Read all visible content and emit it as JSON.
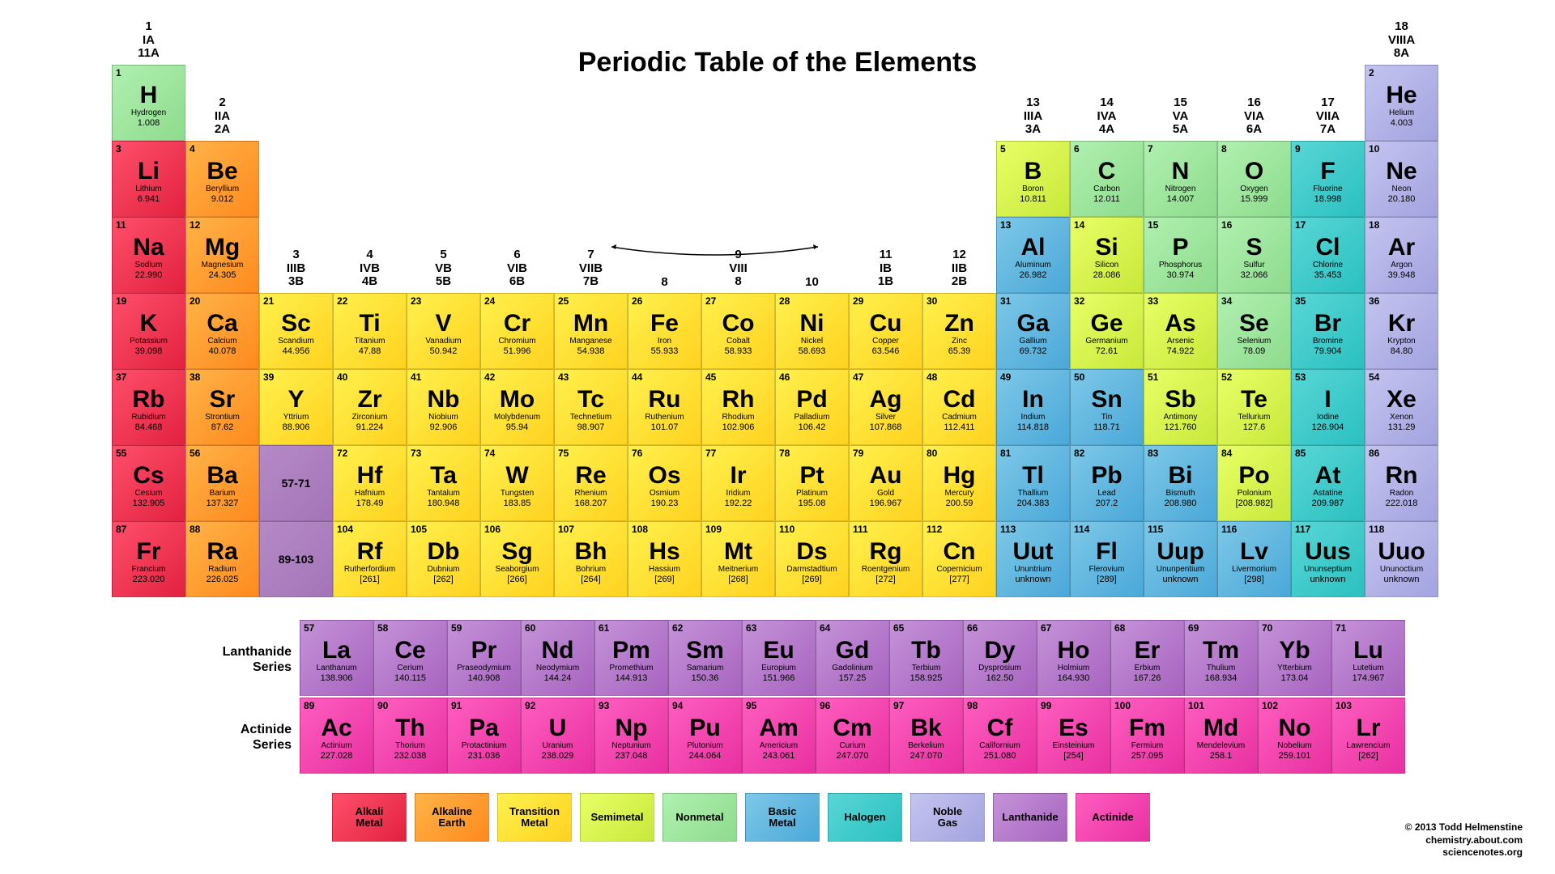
{
  "title": "Periodic Table of the Elements",
  "credits": [
    "© 2013 Todd Helmenstine",
    "chemistry.about.com",
    "sciencenotes.org"
  ],
  "cell_text_color": "#000000",
  "categories": {
    "alkali": {
      "label": "Alkali\nMetal",
      "g": [
        "#ff4f6b",
        "#e2223f"
      ]
    },
    "alkaline": {
      "label": "Alkaline\nEarth",
      "g": [
        "#ffb347",
        "#ff8a1f"
      ]
    },
    "transition": {
      "label": "Transition\nMetal",
      "g": [
        "#fff14d",
        "#ffd21f"
      ]
    },
    "semimetal": {
      "label": "Semimetal",
      "g": [
        "#e8ff66",
        "#c8e83b"
      ]
    },
    "nonmetal": {
      "label": "Nonmetal",
      "g": [
        "#b0f0b0",
        "#8edb8e"
      ]
    },
    "basic": {
      "label": "Basic\nMetal",
      "g": [
        "#7ec8e8",
        "#4aa8d8"
      ]
    },
    "halogen": {
      "label": "Halogen",
      "g": [
        "#59d6d6",
        "#2bc0c0"
      ]
    },
    "noble": {
      "label": "Noble\nGas",
      "g": [
        "#c4c4f0",
        "#a3a3e0"
      ]
    },
    "lanth": {
      "label": "Lanthanide",
      "g": [
        "#c593d8",
        "#a763c0"
      ]
    },
    "act": {
      "label": "Actinide",
      "g": [
        "#ff5ec0",
        "#e830a0"
      ]
    }
  },
  "legend_order": [
    "alkali",
    "alkaline",
    "transition",
    "semimetal",
    "nonmetal",
    "basic",
    "halogen",
    "noble",
    "lanth",
    "act"
  ],
  "group_headers": [
    {
      "col": 1,
      "lines": [
        "1",
        "IA",
        "11A"
      ]
    },
    {
      "col": 2,
      "lines": [
        "2",
        "IIA",
        "2A"
      ]
    },
    {
      "col": 3,
      "lines": [
        "3",
        "IIIB",
        "3B"
      ]
    },
    {
      "col": 4,
      "lines": [
        "4",
        "IVB",
        "4B"
      ]
    },
    {
      "col": 5,
      "lines": [
        "5",
        "VB",
        "5B"
      ]
    },
    {
      "col": 6,
      "lines": [
        "6",
        "VIB",
        "6B"
      ]
    },
    {
      "col": 7,
      "lines": [
        "7",
        "VIIB",
        "7B"
      ]
    },
    {
      "col": 8,
      "lines": [
        "8"
      ]
    },
    {
      "col": 9,
      "lines": [
        "9",
        "VIII",
        "8"
      ]
    },
    {
      "col": 10,
      "lines": [
        "10"
      ]
    },
    {
      "col": 11,
      "lines": [
        "11",
        "IB",
        "1B"
      ]
    },
    {
      "col": 12,
      "lines": [
        "12",
        "IIB",
        "2B"
      ]
    },
    {
      "col": 13,
      "lines": [
        "13",
        "IIIA",
        "3A"
      ]
    },
    {
      "col": 14,
      "lines": [
        "14",
        "IVA",
        "4A"
      ]
    },
    {
      "col": 15,
      "lines": [
        "15",
        "VA",
        "5A"
      ]
    },
    {
      "col": 16,
      "lines": [
        "16",
        "VIA",
        "6A"
      ]
    },
    {
      "col": 17,
      "lines": [
        "17",
        "VIIA",
        "7A"
      ]
    },
    {
      "col": 18,
      "lines": [
        "18",
        "VIIIA",
        "8A"
      ]
    }
  ],
  "header_row": {
    "1": 1,
    "2": 2,
    "3": 4,
    "4": 4,
    "5": 4,
    "6": 4,
    "7": 4,
    "8": 4,
    "9": 4,
    "10": 4,
    "11": 4,
    "12": 4,
    "13": 2,
    "14": 2,
    "15": 2,
    "16": 2,
    "17": 2,
    "18": 1
  },
  "placeholders": [
    {
      "row": 6,
      "col": 3,
      "label": "57-71"
    },
    {
      "row": 7,
      "col": 3,
      "label": "89-103"
    }
  ],
  "series_labels": {
    "lan": "Lanthanide\nSeries",
    "act": "Actinide\nSeries"
  },
  "elements": [
    {
      "n": 1,
      "s": "H",
      "name": "Hydrogen",
      "m": "1.008",
      "c": "nonmetal",
      "r": 1,
      "g": 1
    },
    {
      "n": 2,
      "s": "He",
      "name": "Helium",
      "m": "4.003",
      "c": "noble",
      "r": 1,
      "g": 18
    },
    {
      "n": 3,
      "s": "Li",
      "name": "Lithium",
      "m": "6.941",
      "c": "alkali",
      "r": 2,
      "g": 1
    },
    {
      "n": 4,
      "s": "Be",
      "name": "Beryllium",
      "m": "9.012",
      "c": "alkaline",
      "r": 2,
      "g": 2
    },
    {
      "n": 5,
      "s": "B",
      "name": "Boron",
      "m": "10.811",
      "c": "semimetal",
      "r": 2,
      "g": 13
    },
    {
      "n": 6,
      "s": "C",
      "name": "Carbon",
      "m": "12.011",
      "c": "nonmetal",
      "r": 2,
      "g": 14
    },
    {
      "n": 7,
      "s": "N",
      "name": "Nitrogen",
      "m": "14.007",
      "c": "nonmetal",
      "r": 2,
      "g": 15
    },
    {
      "n": 8,
      "s": "O",
      "name": "Oxygen",
      "m": "15.999",
      "c": "nonmetal",
      "r": 2,
      "g": 16
    },
    {
      "n": 9,
      "s": "F",
      "name": "Fluorine",
      "m": "18.998",
      "c": "halogen",
      "r": 2,
      "g": 17
    },
    {
      "n": 10,
      "s": "Ne",
      "name": "Neon",
      "m": "20.180",
      "c": "noble",
      "r": 2,
      "g": 18
    },
    {
      "n": 11,
      "s": "Na",
      "name": "Sodium",
      "m": "22.990",
      "c": "alkali",
      "r": 3,
      "g": 1
    },
    {
      "n": 12,
      "s": "Mg",
      "name": "Magnesium",
      "m": "24.305",
      "c": "alkaline",
      "r": 3,
      "g": 2
    },
    {
      "n": 13,
      "s": "Al",
      "name": "Aluminum",
      "m": "26.982",
      "c": "basic",
      "r": 3,
      "g": 13
    },
    {
      "n": 14,
      "s": "Si",
      "name": "Silicon",
      "m": "28.086",
      "c": "semimetal",
      "r": 3,
      "g": 14
    },
    {
      "n": 15,
      "s": "P",
      "name": "Phosphorus",
      "m": "30.974",
      "c": "nonmetal",
      "r": 3,
      "g": 15
    },
    {
      "n": 16,
      "s": "S",
      "name": "Sulfur",
      "m": "32.066",
      "c": "nonmetal",
      "r": 3,
      "g": 16
    },
    {
      "n": 17,
      "s": "Cl",
      "name": "Chlorine",
      "m": "35.453",
      "c": "halogen",
      "r": 3,
      "g": 17
    },
    {
      "n": 18,
      "s": "Ar",
      "name": "Argon",
      "m": "39.948",
      "c": "noble",
      "r": 3,
      "g": 18
    },
    {
      "n": 19,
      "s": "K",
      "name": "Potassium",
      "m": "39.098",
      "c": "alkali",
      "r": 4,
      "g": 1
    },
    {
      "n": 20,
      "s": "Ca",
      "name": "Calcium",
      "m": "40.078",
      "c": "alkaline",
      "r": 4,
      "g": 2
    },
    {
      "n": 21,
      "s": "Sc",
      "name": "Scandium",
      "m": "44.956",
      "c": "transition",
      "r": 4,
      "g": 3
    },
    {
      "n": 22,
      "s": "Ti",
      "name": "Titanium",
      "m": "47.88",
      "c": "transition",
      "r": 4,
      "g": 4
    },
    {
      "n": 23,
      "s": "V",
      "name": "Vanadium",
      "m": "50.942",
      "c": "transition",
      "r": 4,
      "g": 5
    },
    {
      "n": 24,
      "s": "Cr",
      "name": "Chromium",
      "m": "51.996",
      "c": "transition",
      "r": 4,
      "g": 6
    },
    {
      "n": 25,
      "s": "Mn",
      "name": "Manganese",
      "m": "54.938",
      "c": "transition",
      "r": 4,
      "g": 7
    },
    {
      "n": 26,
      "s": "Fe",
      "name": "Iron",
      "m": "55.933",
      "c": "transition",
      "r": 4,
      "g": 8
    },
    {
      "n": 27,
      "s": "Co",
      "name": "Cobalt",
      "m": "58.933",
      "c": "transition",
      "r": 4,
      "g": 9
    },
    {
      "n": 28,
      "s": "Ni",
      "name": "Nickel",
      "m": "58.693",
      "c": "transition",
      "r": 4,
      "g": 10
    },
    {
      "n": 29,
      "s": "Cu",
      "name": "Copper",
      "m": "63.546",
      "c": "transition",
      "r": 4,
      "g": 11
    },
    {
      "n": 30,
      "s": "Zn",
      "name": "Zinc",
      "m": "65.39",
      "c": "transition",
      "r": 4,
      "g": 12
    },
    {
      "n": 31,
      "s": "Ga",
      "name": "Gallium",
      "m": "69.732",
      "c": "basic",
      "r": 4,
      "g": 13
    },
    {
      "n": 32,
      "s": "Ge",
      "name": "Germanium",
      "m": "72.61",
      "c": "semimetal",
      "r": 4,
      "g": 14
    },
    {
      "n": 33,
      "s": "As",
      "name": "Arsenic",
      "m": "74.922",
      "c": "semimetal",
      "r": 4,
      "g": 15
    },
    {
      "n": 34,
      "s": "Se",
      "name": "Selenium",
      "m": "78.09",
      "c": "nonmetal",
      "r": 4,
      "g": 16
    },
    {
      "n": 35,
      "s": "Br",
      "name": "Bromine",
      "m": "79.904",
      "c": "halogen",
      "r": 4,
      "g": 17
    },
    {
      "n": 36,
      "s": "Kr",
      "name": "Krypton",
      "m": "84.80",
      "c": "noble",
      "r": 4,
      "g": 18
    },
    {
      "n": 37,
      "s": "Rb",
      "name": "Rubidium",
      "m": "84.468",
      "c": "alkali",
      "r": 5,
      "g": 1
    },
    {
      "n": 38,
      "s": "Sr",
      "name": "Strontium",
      "m": "87.62",
      "c": "alkaline",
      "r": 5,
      "g": 2
    },
    {
      "n": 39,
      "s": "Y",
      "name": "Yttrium",
      "m": "88.906",
      "c": "transition",
      "r": 5,
      "g": 3
    },
    {
      "n": 40,
      "s": "Zr",
      "name": "Zirconium",
      "m": "91.224",
      "c": "transition",
      "r": 5,
      "g": 4
    },
    {
      "n": 41,
      "s": "Nb",
      "name": "Niobium",
      "m": "92.906",
      "c": "transition",
      "r": 5,
      "g": 5
    },
    {
      "n": 42,
      "s": "Mo",
      "name": "Molybdenum",
      "m": "95.94",
      "c": "transition",
      "r": 5,
      "g": 6
    },
    {
      "n": 43,
      "s": "Tc",
      "name": "Technetium",
      "m": "98.907",
      "c": "transition",
      "r": 5,
      "g": 7
    },
    {
      "n": 44,
      "s": "Ru",
      "name": "Ruthenium",
      "m": "101.07",
      "c": "transition",
      "r": 5,
      "g": 8
    },
    {
      "n": 45,
      "s": "Rh",
      "name": "Rhodium",
      "m": "102.906",
      "c": "transition",
      "r": 5,
      "g": 9
    },
    {
      "n": 46,
      "s": "Pd",
      "name": "Palladium",
      "m": "106.42",
      "c": "transition",
      "r": 5,
      "g": 10
    },
    {
      "n": 47,
      "s": "Ag",
      "name": "Silver",
      "m": "107.868",
      "c": "transition",
      "r": 5,
      "g": 11
    },
    {
      "n": 48,
      "s": "Cd",
      "name": "Cadmium",
      "m": "112.411",
      "c": "transition",
      "r": 5,
      "g": 12
    },
    {
      "n": 49,
      "s": "In",
      "name": "Indium",
      "m": "114.818",
      "c": "basic",
      "r": 5,
      "g": 13
    },
    {
      "n": 50,
      "s": "Sn",
      "name": "Tin",
      "m": "118.71",
      "c": "basic",
      "r": 5,
      "g": 14
    },
    {
      "n": 51,
      "s": "Sb",
      "name": "Antimony",
      "m": "121.760",
      "c": "semimetal",
      "r": 5,
      "g": 15
    },
    {
      "n": 52,
      "s": "Te",
      "name": "Tellurium",
      "m": "127.6",
      "c": "semimetal",
      "r": 5,
      "g": 16
    },
    {
      "n": 53,
      "s": "I",
      "name": "Iodine",
      "m": "126.904",
      "c": "halogen",
      "r": 5,
      "g": 17
    },
    {
      "n": 54,
      "s": "Xe",
      "name": "Xenon",
      "m": "131.29",
      "c": "noble",
      "r": 5,
      "g": 18
    },
    {
      "n": 55,
      "s": "Cs",
      "name": "Cesium",
      "m": "132.905",
      "c": "alkali",
      "r": 6,
      "g": 1
    },
    {
      "n": 56,
      "s": "Ba",
      "name": "Barium",
      "m": "137.327",
      "c": "alkaline",
      "r": 6,
      "g": 2
    },
    {
      "n": 72,
      "s": "Hf",
      "name": "Hafnium",
      "m": "178.49",
      "c": "transition",
      "r": 6,
      "g": 4
    },
    {
      "n": 73,
      "s": "Ta",
      "name": "Tantalum",
      "m": "180.948",
      "c": "transition",
      "r": 6,
      "g": 5
    },
    {
      "n": 74,
      "s": "W",
      "name": "Tungsten",
      "m": "183.85",
      "c": "transition",
      "r": 6,
      "g": 6
    },
    {
      "n": 75,
      "s": "Re",
      "name": "Rhenium",
      "m": "168.207",
      "c": "transition",
      "r": 6,
      "g": 7
    },
    {
      "n": 76,
      "s": "Os",
      "name": "Osmium",
      "m": "190.23",
      "c": "transition",
      "r": 6,
      "g": 8
    },
    {
      "n": 77,
      "s": "Ir",
      "name": "Iridium",
      "m": "192.22",
      "c": "transition",
      "r": 6,
      "g": 9
    },
    {
      "n": 78,
      "s": "Pt",
      "name": "Platinum",
      "m": "195.08",
      "c": "transition",
      "r": 6,
      "g": 10
    },
    {
      "n": 79,
      "s": "Au",
      "name": "Gold",
      "m": "196.967",
      "c": "transition",
      "r": 6,
      "g": 11
    },
    {
      "n": 80,
      "s": "Hg",
      "name": "Mercury",
      "m": "200.59",
      "c": "transition",
      "r": 6,
      "g": 12
    },
    {
      "n": 81,
      "s": "Tl",
      "name": "Thallium",
      "m": "204.383",
      "c": "basic",
      "r": 6,
      "g": 13
    },
    {
      "n": 82,
      "s": "Pb",
      "name": "Lead",
      "m": "207.2",
      "c": "basic",
      "r": 6,
      "g": 14
    },
    {
      "n": 83,
      "s": "Bi",
      "name": "Bismuth",
      "m": "208.980",
      "c": "basic",
      "r": 6,
      "g": 15
    },
    {
      "n": 84,
      "s": "Po",
      "name": "Polonium",
      "m": "[208.982]",
      "c": "semimetal",
      "r": 6,
      "g": 16
    },
    {
      "n": 85,
      "s": "At",
      "name": "Astatine",
      "m": "209.987",
      "c": "halogen",
      "r": 6,
      "g": 17
    },
    {
      "n": 86,
      "s": "Rn",
      "name": "Radon",
      "m": "222.018",
      "c": "noble",
      "r": 6,
      "g": 18
    },
    {
      "n": 87,
      "s": "Fr",
      "name": "Francium",
      "m": "223.020",
      "c": "alkali",
      "r": 7,
      "g": 1
    },
    {
      "n": 88,
      "s": "Ra",
      "name": "Radium",
      "m": "226.025",
      "c": "alkaline",
      "r": 7,
      "g": 2
    },
    {
      "n": 104,
      "s": "Rf",
      "name": "Rutherfordium",
      "m": "[261]",
      "c": "transition",
      "r": 7,
      "g": 4
    },
    {
      "n": 105,
      "s": "Db",
      "name": "Dubnium",
      "m": "[262]",
      "c": "transition",
      "r": 7,
      "g": 5
    },
    {
      "n": 106,
      "s": "Sg",
      "name": "Seaborgium",
      "m": "[266]",
      "c": "transition",
      "r": 7,
      "g": 6
    },
    {
      "n": 107,
      "s": "Bh",
      "name": "Bohrium",
      "m": "[264]",
      "c": "transition",
      "r": 7,
      "g": 7
    },
    {
      "n": 108,
      "s": "Hs",
      "name": "Hassium",
      "m": "[269]",
      "c": "transition",
      "r": 7,
      "g": 8
    },
    {
      "n": 109,
      "s": "Mt",
      "name": "Meitnerium",
      "m": "[268]",
      "c": "transition",
      "r": 7,
      "g": 9
    },
    {
      "n": 110,
      "s": "Ds",
      "name": "Darmstadtium",
      "m": "[269]",
      "c": "transition",
      "r": 7,
      "g": 10
    },
    {
      "n": 111,
      "s": "Rg",
      "name": "Roentgenium",
      "m": "[272]",
      "c": "transition",
      "r": 7,
      "g": 11
    },
    {
      "n": 112,
      "s": "Cn",
      "name": "Copernicium",
      "m": "[277]",
      "c": "transition",
      "r": 7,
      "g": 12
    },
    {
      "n": 113,
      "s": "Uut",
      "name": "Ununtrium",
      "m": "unknown",
      "c": "basic",
      "r": 7,
      "g": 13
    },
    {
      "n": 114,
      "s": "Fl",
      "name": "Flerovium",
      "m": "[289]",
      "c": "basic",
      "r": 7,
      "g": 14
    },
    {
      "n": 115,
      "s": "Uup",
      "name": "Ununpentium",
      "m": "unknown",
      "c": "basic",
      "r": 7,
      "g": 15
    },
    {
      "n": 116,
      "s": "Lv",
      "name": "Livermorium",
      "m": "[298]",
      "c": "basic",
      "r": 7,
      "g": 16
    },
    {
      "n": 117,
      "s": "Uus",
      "name": "Ununseptium",
      "m": "unknown",
      "c": "halogen",
      "r": 7,
      "g": 17
    },
    {
      "n": 118,
      "s": "Uuo",
      "name": "Ununoctium",
      "m": "unknown",
      "c": "noble",
      "r": 7,
      "g": 18
    }
  ],
  "lanthanides": [
    {
      "n": 57,
      "s": "La",
      "name": "Lanthanum",
      "m": "138.906"
    },
    {
      "n": 58,
      "s": "Ce",
      "name": "Cerium",
      "m": "140.115"
    },
    {
      "n": 59,
      "s": "Pr",
      "name": "Praseodymium",
      "m": "140.908"
    },
    {
      "n": 60,
      "s": "Nd",
      "name": "Neodymium",
      "m": "144.24"
    },
    {
      "n": 61,
      "s": "Pm",
      "name": "Promethium",
      "m": "144.913"
    },
    {
      "n": 62,
      "s": "Sm",
      "name": "Samarium",
      "m": "150.36"
    },
    {
      "n": 63,
      "s": "Eu",
      "name": "Europium",
      "m": "151.966"
    },
    {
      "n": 64,
      "s": "Gd",
      "name": "Gadolinium",
      "m": "157.25"
    },
    {
      "n": 65,
      "s": "Tb",
      "name": "Terbium",
      "m": "158.925"
    },
    {
      "n": 66,
      "s": "Dy",
      "name": "Dysprosium",
      "m": "162.50"
    },
    {
      "n": 67,
      "s": "Ho",
      "name": "Holmium",
      "m": "164.930"
    },
    {
      "n": 68,
      "s": "Er",
      "name": "Erbium",
      "m": "167.26"
    },
    {
      "n": 69,
      "s": "Tm",
      "name": "Thulium",
      "m": "168.934"
    },
    {
      "n": 70,
      "s": "Yb",
      "name": "Ytterbium",
      "m": "173.04"
    },
    {
      "n": 71,
      "s": "Lu",
      "name": "Lutetium",
      "m": "174.967"
    }
  ],
  "actinides": [
    {
      "n": 89,
      "s": "Ac",
      "name": "Actinium",
      "m": "227.028"
    },
    {
      "n": 90,
      "s": "Th",
      "name": "Thorium",
      "m": "232.038"
    },
    {
      "n": 91,
      "s": "Pa",
      "name": "Protactinium",
      "m": "231.036"
    },
    {
      "n": 92,
      "s": "U",
      "name": "Uranium",
      "m": "238.029"
    },
    {
      "n": 93,
      "s": "Np",
      "name": "Neptunium",
      "m": "237.048"
    },
    {
      "n": 94,
      "s": "Pu",
      "name": "Plutonium",
      "m": "244.064"
    },
    {
      "n": 95,
      "s": "Am",
      "name": "Americium",
      "m": "243.061"
    },
    {
      "n": 96,
      "s": "Cm",
      "name": "Curium",
      "m": "247.070"
    },
    {
      "n": 97,
      "s": "Bk",
      "name": "Berkelium",
      "m": "247.070"
    },
    {
      "n": 98,
      "s": "Cf",
      "name": "Californium",
      "m": "251.080"
    },
    {
      "n": 99,
      "s": "Es",
      "name": "Einsteinium",
      "m": "[254]"
    },
    {
      "n": 100,
      "s": "Fm",
      "name": "Fermium",
      "m": "257.095"
    },
    {
      "n": 101,
      "s": "Md",
      "name": "Mendelevium",
      "m": "258.1"
    },
    {
      "n": 102,
      "s": "No",
      "name": "Nobelium",
      "m": "259.101"
    },
    {
      "n": 103,
      "s": "Lr",
      "name": "Lawrencium",
      "m": "[262]"
    }
  ]
}
